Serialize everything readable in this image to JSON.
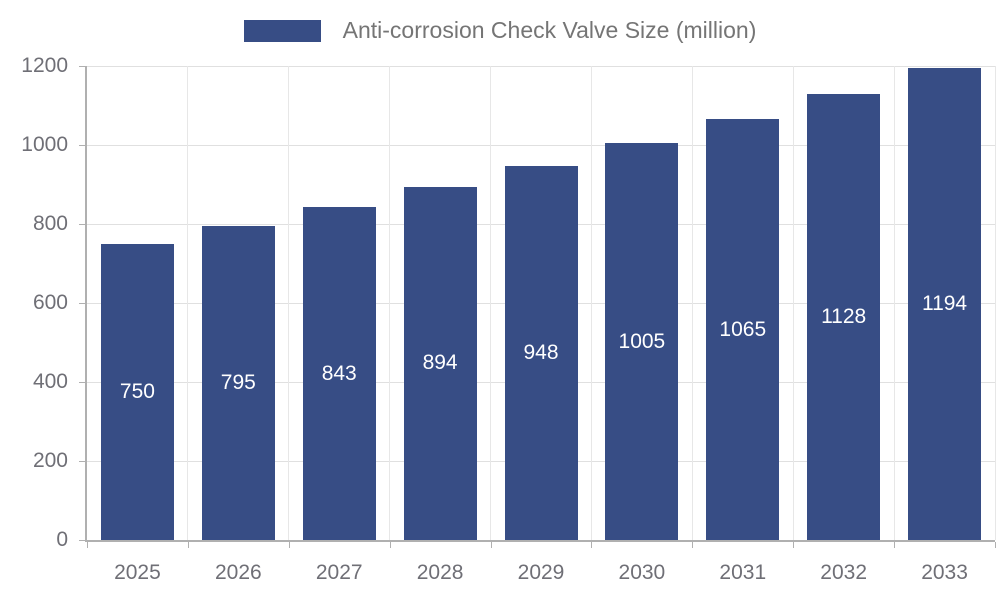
{
  "chart_data": {
    "type": "bar",
    "title": "Anti-corrosion Check Valve Size (million)",
    "categories": [
      "2025",
      "2026",
      "2027",
      "2028",
      "2029",
      "2030",
      "2031",
      "2032",
      "2033"
    ],
    "values": [
      750,
      795,
      843,
      894,
      948,
      1005,
      1065,
      1128,
      1194
    ],
    "xlabel": "",
    "ylabel": "",
    "ylim": [
      0,
      1200
    ],
    "ytick_step": 200,
    "yticks": [
      0,
      200,
      400,
      600,
      800,
      1000,
      1200
    ],
    "grid": true,
    "legend_position": "top-center",
    "value_labels_visible": true,
    "value_label_position": "inside-center",
    "colors": {
      "bar": "#374d85",
      "value_label": "#ffffff",
      "axis_text": "#6f6f76",
      "legend_text": "#757575",
      "grid_line_h": "#e0e0e0",
      "grid_line_v": "#e7e7e7",
      "axis_line": "#b0b0b0"
    }
  }
}
